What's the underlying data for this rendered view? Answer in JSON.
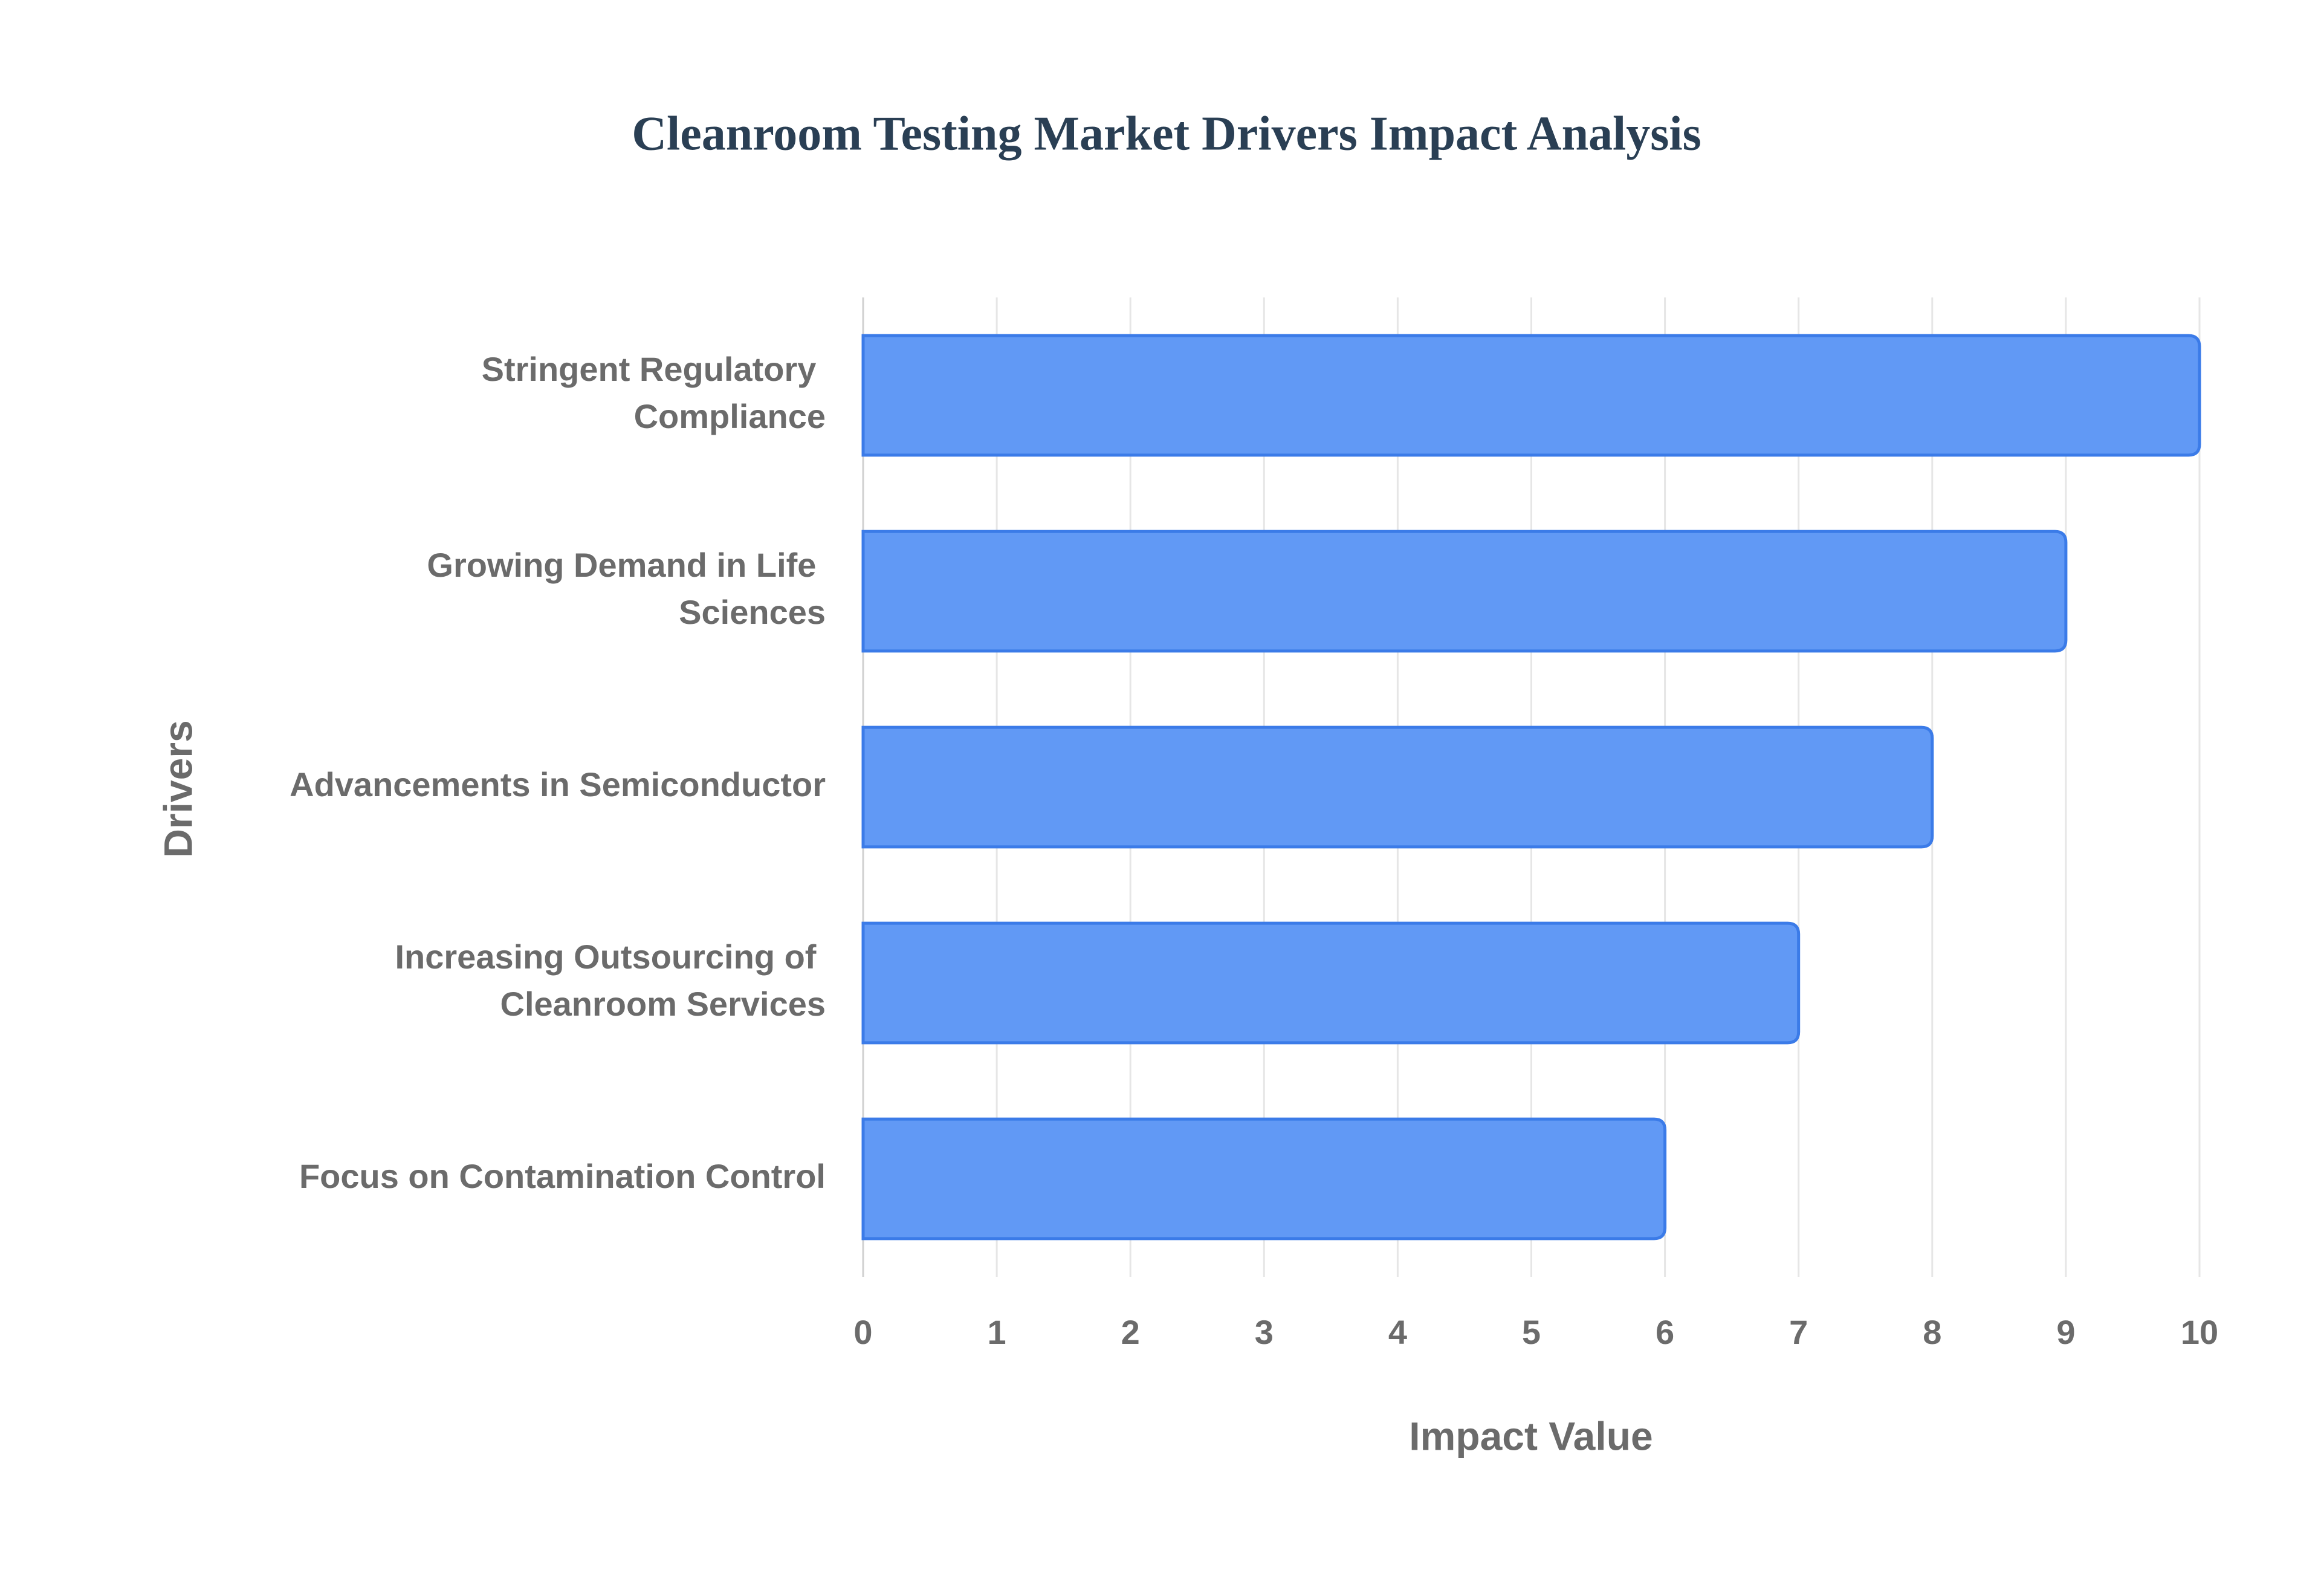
{
  "chart_data": {
    "type": "hbar",
    "title": "Cleanroom Testing Market Drivers Impact Analysis",
    "x_label": "Impact Value",
    "y_label": "Drivers",
    "categories": [
      "Stringent Regulatory Compliance",
      "Growing Demand in Life Sciences",
      "Advancements in Semiconductor",
      "Increasing Outsourcing of Cleanroom Services",
      "Focus on Contamination Control"
    ],
    "values": [
      10,
      9,
      8,
      7,
      6
    ],
    "color": "#6199f5",
    "xlim": [
      0,
      10
    ],
    "xticks": [
      0,
      1,
      2,
      3,
      4,
      5,
      6,
      7,
      8,
      9,
      10
    ],
    "grid": true
  }
}
